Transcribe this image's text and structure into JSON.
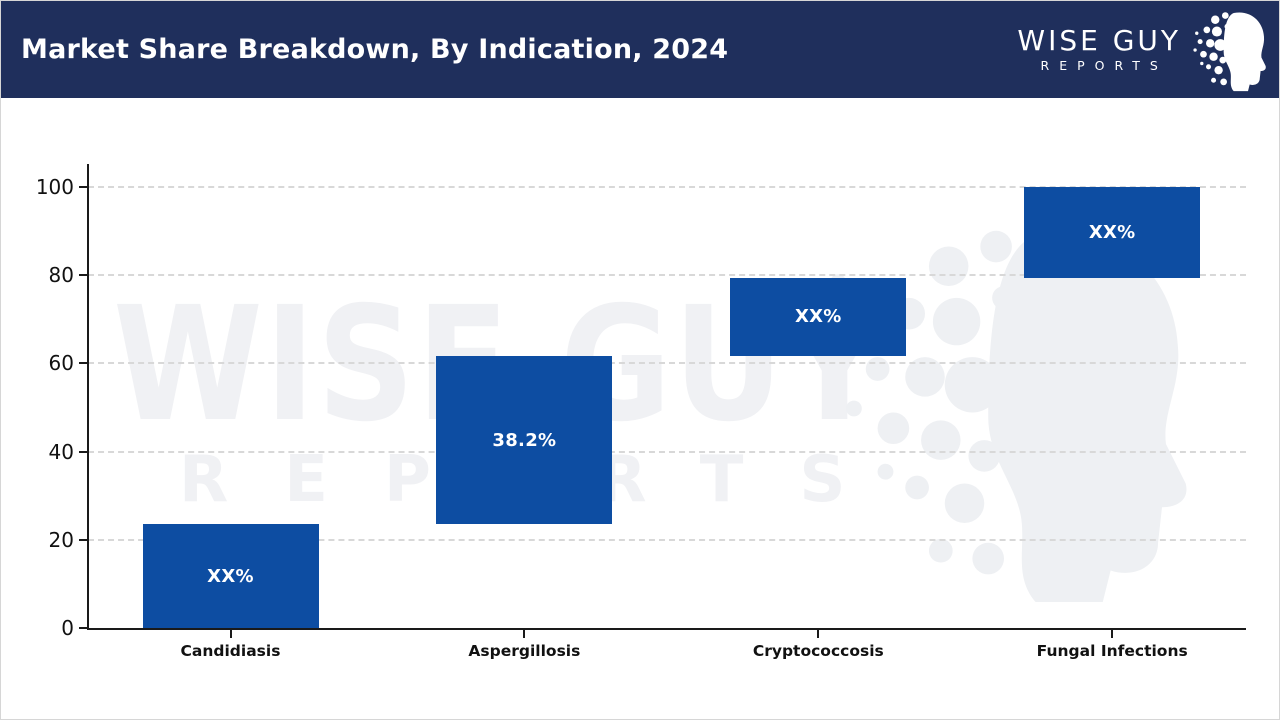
{
  "header": {
    "title": "Market Share Breakdown, By Indication, 2024",
    "bg_color": "#1f2f5c",
    "logo": {
      "line1": "WISE GUY",
      "line2": "REPORTS"
    }
  },
  "watermark": {
    "line1": "WISE GUY",
    "line2": "REPORTS"
  },
  "chart_data": {
    "type": "bar",
    "subtype": "waterfall",
    "title": "Market Share Breakdown, By Indication, 2024",
    "categories": [
      "Candidiasis",
      "Aspergillosis",
      "Cryptococcosis",
      "Fungal Infections"
    ],
    "segments": [
      {
        "category": "Candidiasis",
        "start": 0,
        "end": 23.5,
        "value": 23.5,
        "label": "XX%"
      },
      {
        "category": "Aspergillosis",
        "start": 23.5,
        "end": 61.7,
        "value": 38.2,
        "label": "38.2%"
      },
      {
        "category": "Cryptococcosis",
        "start": 61.7,
        "end": 79.4,
        "value": 17.7,
        "label": "XX%"
      },
      {
        "category": "Fungal Infections",
        "start": 79.4,
        "end": 100,
        "value": 20.6,
        "label": "XX%"
      }
    ],
    "yticks": [
      0,
      20,
      40,
      60,
      80,
      100
    ],
    "ylim": [
      0,
      105
    ],
    "xlabel": "",
    "ylabel": "",
    "grid": "horizontal-dashed",
    "legend": "none",
    "colors": {
      "bar": "#0d4da2",
      "grid": "#d8d8d8",
      "axis": "#1a1a1a",
      "bar_label": "#ffffff"
    }
  }
}
